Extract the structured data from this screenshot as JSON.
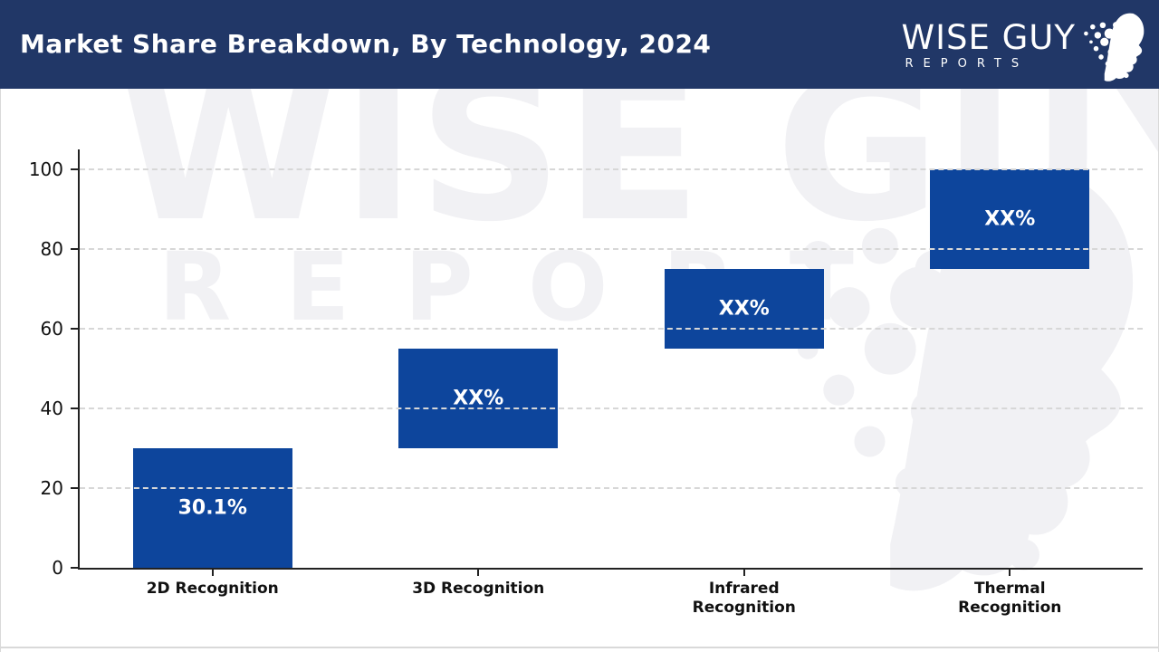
{
  "header": {
    "title": "Market Share Breakdown, By Technology, 2024",
    "bg_color": "#213767",
    "logo": {
      "brand_line1": "WISE GUY",
      "brand_line2": "REPORTS"
    }
  },
  "watermark": {
    "line1": "WISE GUY",
    "line2": "R E P O R T S"
  },
  "chart_data": {
    "type": "bar",
    "subtype": "floating-segment bars (waterfall-style market share breakdown)",
    "title": "Market Share Breakdown, By Technology, 2024",
    "categories": [
      "2D Recognition",
      "3D Recognition",
      "Infrared\nRecognition",
      "Thermal\nRecognition"
    ],
    "series": [
      {
        "name": "Market share (%)",
        "segments": [
          {
            "category": "2D Recognition",
            "start": 0,
            "end": 30.1,
            "label": "30.1%"
          },
          {
            "category": "3D Recognition",
            "start": 30.1,
            "end": 55,
            "label": "XX%"
          },
          {
            "category": "Infrared Recognition",
            "start": 55,
            "end": 75,
            "label": "XX%"
          },
          {
            "category": "Thermal Recognition",
            "start": 75,
            "end": 100,
            "label": "XX%"
          }
        ]
      }
    ],
    "ylim": [
      0,
      100
    ],
    "yticks": [
      0,
      20,
      40,
      60,
      80,
      100
    ],
    "grid": "horizontal dashed lines drawn over bars",
    "legend": "none",
    "colors": {
      "bar": "#0d459c",
      "bar_label": "#ffffff",
      "axis": "#222222",
      "gridline": "#d7d7d7",
      "header_bg": "#213767",
      "watermark": "#f1f1f4"
    }
  }
}
